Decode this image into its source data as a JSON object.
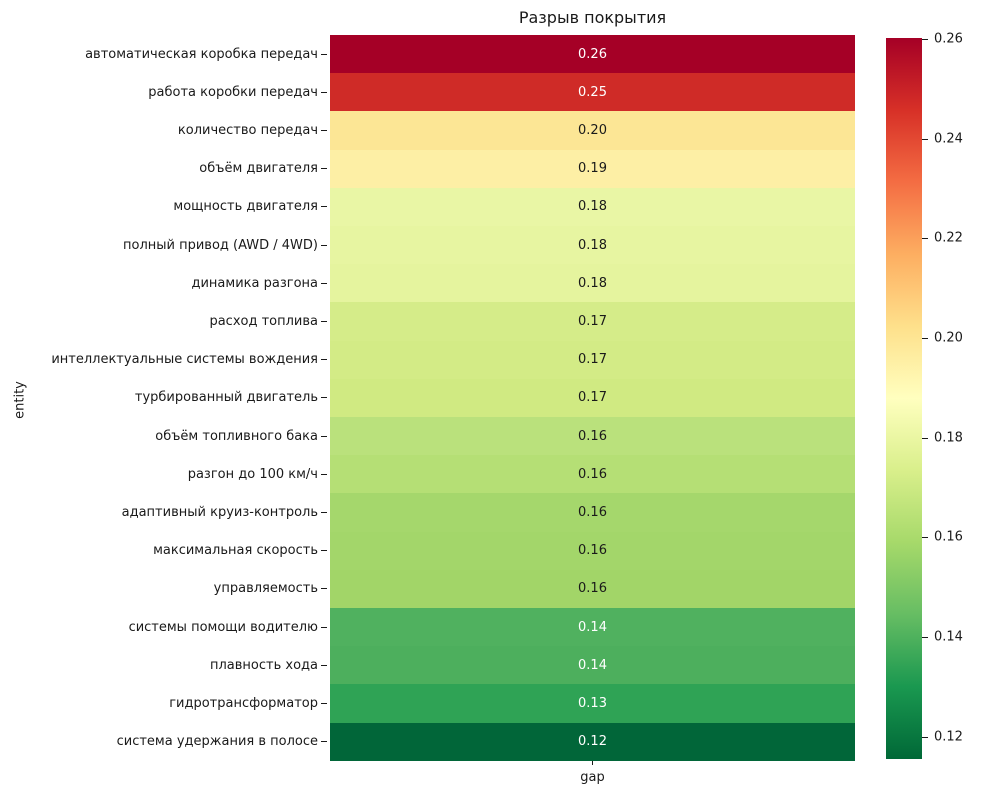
{
  "chart_data": {
    "type": "heatmap",
    "title": "Разрыв покрытия",
    "ylabel": "entity",
    "columns": [
      "gap"
    ],
    "legend_position": "colorbar-right",
    "grid": false,
    "rows": [
      {
        "label": "автоматическая коробка передач",
        "value": "0.26",
        "color": "#a50026",
        "text": "#ffffff"
      },
      {
        "label": "работа коробки передач",
        "value": "0.25",
        "color": "#cf2b27",
        "text": "#ffffff"
      },
      {
        "label": "количество передач",
        "value": "0.20",
        "color": "#fce695",
        "text": "#1a1a1a"
      },
      {
        "label": "объём двигателя",
        "value": "0.19",
        "color": "#fdefa5",
        "text": "#1a1a1a"
      },
      {
        "label": "мощность двигателя",
        "value": "0.18",
        "color": "#e9f6a5",
        "text": "#1a1a1a"
      },
      {
        "label": "полный привод (AWD / 4WD)",
        "value": "0.18",
        "color": "#e7f5a1",
        "text": "#1a1a1a"
      },
      {
        "label": "динамика разгона",
        "value": "0.18",
        "color": "#e5f49e",
        "text": "#1a1a1a"
      },
      {
        "label": "расход топлива",
        "value": "0.17",
        "color": "#d5ec89",
        "text": "#1a1a1a"
      },
      {
        "label": "интеллектуальные системы вождения",
        "value": "0.17",
        "color": "#d3eb86",
        "text": "#1a1a1a"
      },
      {
        "label": "турбированный двигатель",
        "value": "0.17",
        "color": "#d0ea82",
        "text": "#1a1a1a"
      },
      {
        "label": "объём топливного бака",
        "value": "0.16",
        "color": "#bae17c",
        "text": "#1a1a1a"
      },
      {
        "label": "разгон до 100 км/ч",
        "value": "0.16",
        "color": "#b5df75",
        "text": "#1a1a1a"
      },
      {
        "label": "адаптивный круиз-контроль",
        "value": "0.16",
        "color": "#a5d76c",
        "text": "#1a1a1a"
      },
      {
        "label": "максимальная скорость",
        "value": "0.16",
        "color": "#a3d66a",
        "text": "#1a1a1a"
      },
      {
        "label": "управляемость",
        "value": "0.16",
        "color": "#a2d568",
        "text": "#1a1a1a"
      },
      {
        "label": "системы помощи водителю",
        "value": "0.14",
        "color": "#50b15f",
        "text": "#ffffff"
      },
      {
        "label": "плавность хода",
        "value": "0.14",
        "color": "#4daf5d",
        "text": "#ffffff"
      },
      {
        "label": "гидротрансформатор",
        "value": "0.13",
        "color": "#2fa355",
        "text": "#ffffff"
      },
      {
        "label": "система удержания в полосе",
        "value": "0.12",
        "color": "#016639",
        "text": "#ffffff"
      }
    ],
    "colorbar": {
      "ticks": [
        "0.26",
        "0.24",
        "0.22",
        "0.20",
        "0.18",
        "0.16",
        "0.14",
        "0.12"
      ],
      "vmin": 0.1155,
      "vmax": 0.2602,
      "gradient_top_to_bottom": [
        "#a50026",
        "#d73027",
        "#f46d43",
        "#fdae61",
        "#fee08b",
        "#ffffbf",
        "#d9ef8b",
        "#a6d96a",
        "#66bd63",
        "#1a9850",
        "#006837"
      ]
    }
  }
}
